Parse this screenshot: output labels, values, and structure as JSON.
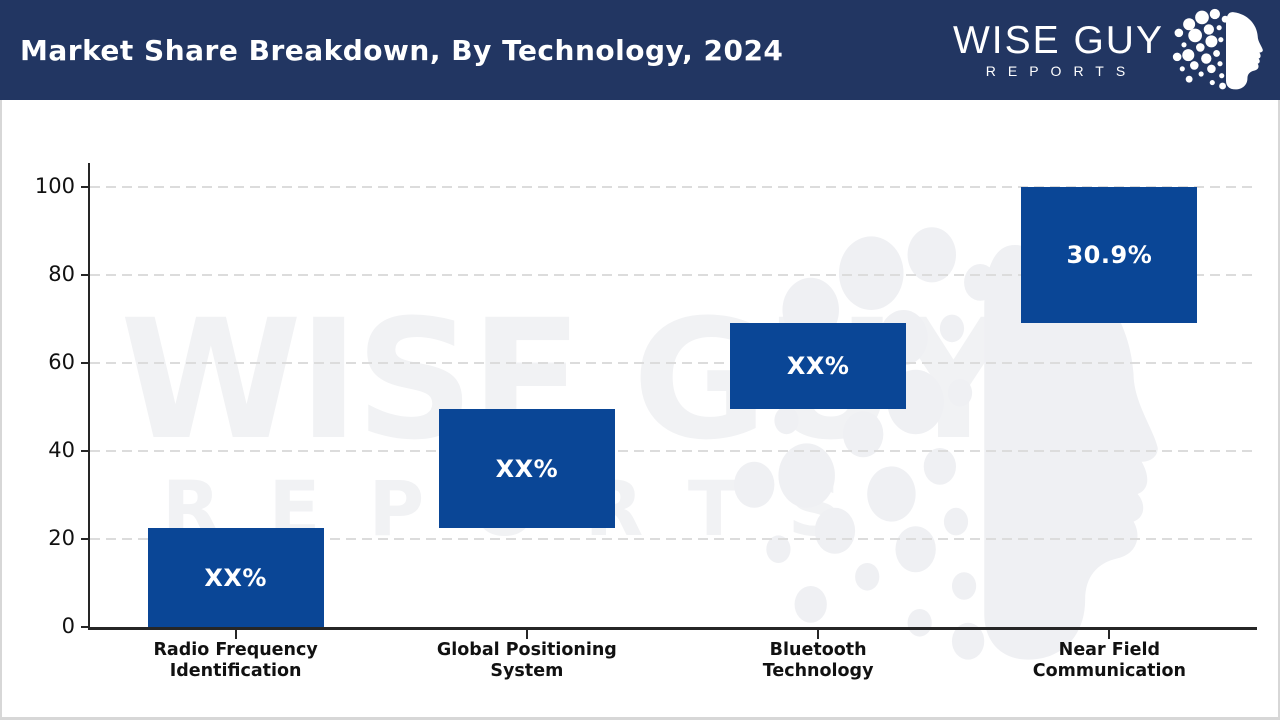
{
  "header": {
    "title": "Market Share Breakdown, By Technology, 2024",
    "logo": {
      "line1": "WISE GUY",
      "line2": "REPORTS"
    }
  },
  "watermark": {
    "line1": "WISE GUY",
    "line2": "REPORTS"
  },
  "colors": {
    "header_bg": "#223662",
    "bar": "#0a4696",
    "grid": "#dcdcdc",
    "axis": "#262626",
    "watermark": "#f1f2f4",
    "title_text": "#ffffff",
    "bar_label_text": "#ffffff"
  },
  "chart_data": {
    "type": "bar",
    "subtype": "waterfall",
    "title": "Market Share Breakdown, By Technology, 2024",
    "categories": [
      [
        "Radio Frequency",
        "Identification"
      ],
      [
        "Global Positioning",
        "System"
      ],
      [
        "Bluetooth",
        "Technology"
      ],
      [
        "Near Field",
        "Communication"
      ]
    ],
    "segments": [
      {
        "start": 0,
        "end": 22.5,
        "label": "XX%"
      },
      {
        "start": 22.5,
        "end": 49.5,
        "label": "XX%"
      },
      {
        "start": 49.5,
        "end": 69.1,
        "label": "XX%"
      },
      {
        "start": 69.1,
        "end": 100,
        "label": "30.9%"
      }
    ],
    "xlabel": "",
    "ylabel": "",
    "ylim": [
      0,
      100
    ],
    "yticks": [
      0,
      20,
      40,
      60,
      80,
      100
    ],
    "grid": "horizontal-dashed",
    "legend": "none",
    "bar_color": "#0a4696"
  }
}
